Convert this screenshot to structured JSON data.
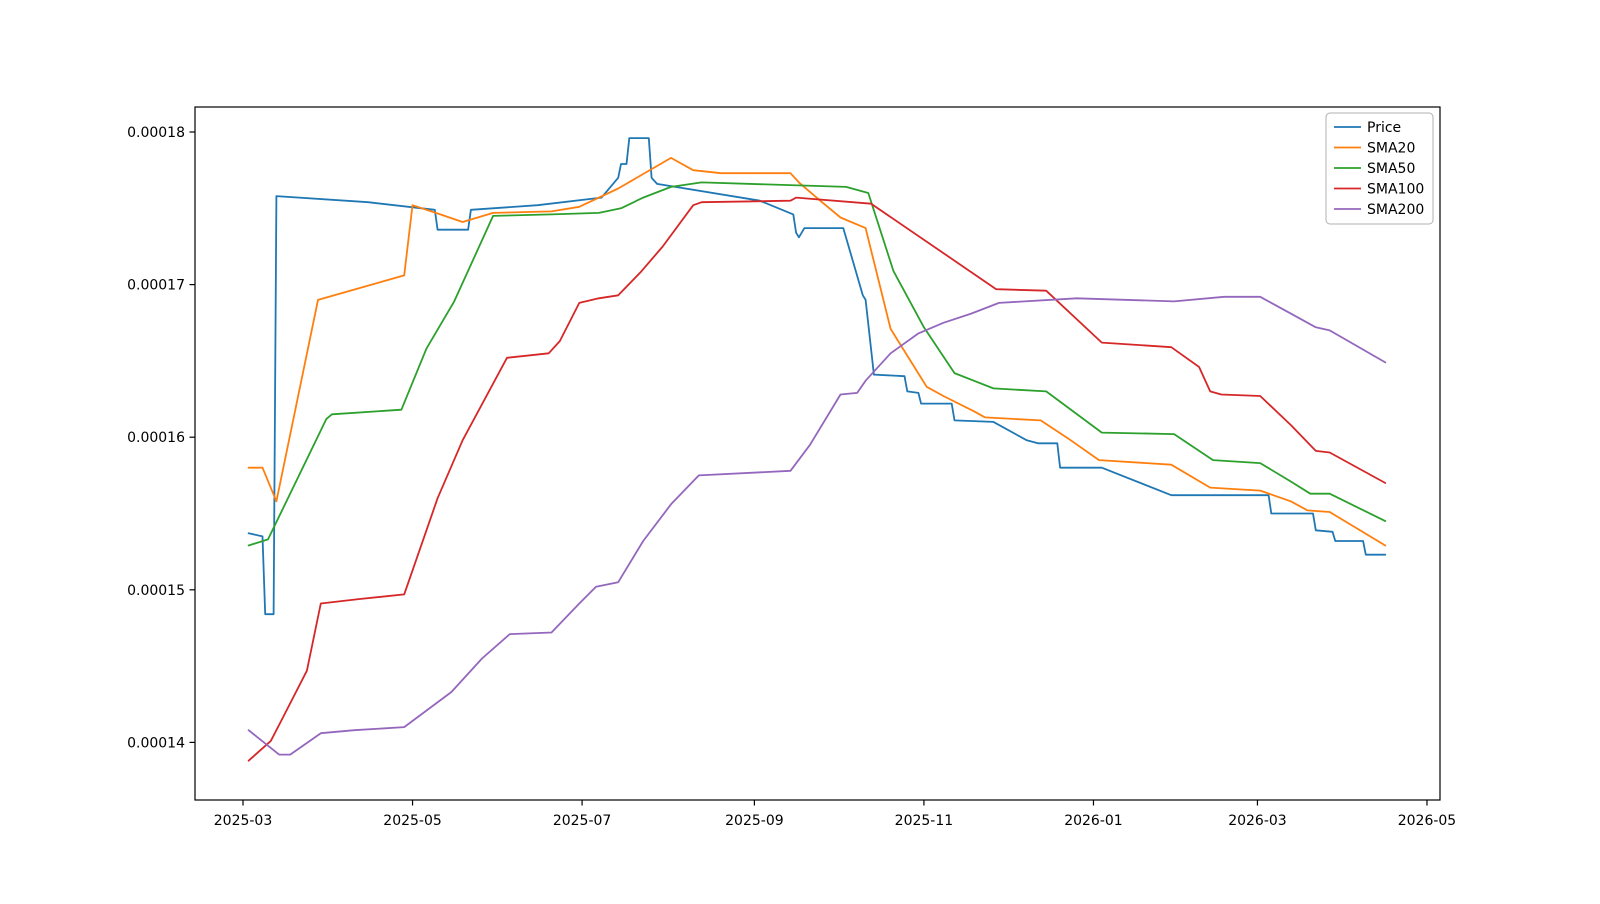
{
  "figure": {
    "background": "#ffffff"
  },
  "chart_data": {
    "type": "line",
    "grid": false,
    "xlabel": "",
    "ylabel": "",
    "x_axis": {
      "ticks": [
        {
          "label": "2025-03",
          "date": "2025-03-01"
        },
        {
          "label": "2025-05",
          "date": "2025-05-01"
        },
        {
          "label": "2025-07",
          "date": "2025-07-01"
        },
        {
          "label": "2025-09",
          "date": "2025-09-01"
        },
        {
          "label": "2025-11",
          "date": "2025-11-01"
        },
        {
          "label": "2026-01",
          "date": "2026-01-01"
        },
        {
          "label": "2026-03",
          "date": "2026-03-01"
        },
        {
          "label": "2026-05",
          "date": "2026-05-01"
        }
      ],
      "xlim": [
        "2025-02-11",
        "2026-05-06"
      ]
    },
    "y_axis": {
      "ticks": [
        {
          "label": "0.00018",
          "value": 0.00018
        },
        {
          "label": "0.00017",
          "value": 0.00017
        },
        {
          "label": "0.00016",
          "value": 0.00016
        },
        {
          "label": "0.00015",
          "value": 0.00015
        },
        {
          "label": "0.00014",
          "value": 0.00014
        }
      ],
      "ylim": [
        0.0001362,
        0.0001817
      ]
    },
    "legend": {
      "position": "upper right",
      "entries": [
        "Price",
        "SMA20",
        "SMA50",
        "SMA100",
        "SMA200"
      ]
    },
    "series": [
      {
        "name": "Price",
        "color": "#1f77b4",
        "points": [
          [
            "2025-03-03",
            0.0001537
          ],
          [
            "2025-03-08",
            0.0001535
          ],
          [
            "2025-03-09",
            0.0001484
          ],
          [
            "2025-03-12",
            0.0001484
          ],
          [
            "2025-03-13",
            0.0001758
          ],
          [
            "2025-04-15",
            0.0001754
          ],
          [
            "2025-05-09",
            0.0001749
          ],
          [
            "2025-05-10",
            0.0001736
          ],
          [
            "2025-05-21",
            0.0001736
          ],
          [
            "2025-05-22",
            0.0001749
          ],
          [
            "2025-06-15",
            0.0001752
          ],
          [
            "2025-07-08",
            0.0001757
          ],
          [
            "2025-07-14",
            0.000177
          ],
          [
            "2025-07-15",
            0.0001779
          ],
          [
            "2025-07-17",
            0.0001779
          ],
          [
            "2025-07-18",
            0.0001796
          ],
          [
            "2025-07-25",
            0.0001796
          ],
          [
            "2025-07-26",
            0.000177
          ],
          [
            "2025-07-28",
            0.0001766
          ],
          [
            "2025-09-03",
            0.0001755
          ],
          [
            "2025-09-15",
            0.0001746
          ],
          [
            "2025-09-16",
            0.0001734
          ],
          [
            "2025-09-17",
            0.0001731
          ],
          [
            "2025-09-19",
            0.0001737
          ],
          [
            "2025-10-03",
            0.0001737
          ],
          [
            "2025-10-10",
            0.0001693
          ],
          [
            "2025-10-11",
            0.000169
          ],
          [
            "2025-10-14",
            0.0001641
          ],
          [
            "2025-10-25",
            0.000164
          ],
          [
            "2025-10-26",
            0.000163
          ],
          [
            "2025-10-30",
            0.0001629
          ],
          [
            "2025-10-31",
            0.0001622
          ],
          [
            "2025-11-11",
            0.0001622
          ],
          [
            "2025-11-12",
            0.0001611
          ],
          [
            "2025-11-26",
            0.000161
          ],
          [
            "2025-12-08",
            0.0001598
          ],
          [
            "2025-12-12",
            0.0001596
          ],
          [
            "2025-12-19",
            0.0001596
          ],
          [
            "2025-12-20",
            0.000158
          ],
          [
            "2026-01-04",
            0.000158
          ],
          [
            "2026-01-29",
            0.0001562
          ],
          [
            "2026-03-05",
            0.0001562
          ],
          [
            "2026-03-06",
            0.000155
          ],
          [
            "2026-03-21",
            0.000155
          ],
          [
            "2026-03-22",
            0.0001539
          ],
          [
            "2026-03-28",
            0.0001538
          ],
          [
            "2026-03-29",
            0.0001532
          ],
          [
            "2026-04-08",
            0.0001532
          ],
          [
            "2026-04-09",
            0.0001523
          ],
          [
            "2026-04-16",
            0.0001523
          ]
        ]
      },
      {
        "name": "SMA20",
        "color": "#ff7f0e",
        "points": [
          [
            "2025-03-03",
            0.000158
          ],
          [
            "2025-03-08",
            0.000158
          ],
          [
            "2025-03-13",
            0.0001558
          ],
          [
            "2025-03-28",
            0.000169
          ],
          [
            "2025-04-28",
            0.0001706
          ],
          [
            "2025-05-01",
            0.0001752
          ],
          [
            "2025-05-11",
            0.0001746
          ],
          [
            "2025-05-19",
            0.0001741
          ],
          [
            "2025-05-30",
            0.0001747
          ],
          [
            "2025-06-20",
            0.0001748
          ],
          [
            "2025-06-30",
            0.0001751
          ],
          [
            "2025-07-14",
            0.0001763
          ],
          [
            "2025-08-02",
            0.0001783
          ],
          [
            "2025-08-10",
            0.0001775
          ],
          [
            "2025-08-20",
            0.0001773
          ],
          [
            "2025-09-14",
            0.0001773
          ],
          [
            "2025-09-17",
            0.0001767
          ],
          [
            "2025-09-24",
            0.0001756
          ],
          [
            "2025-10-02",
            0.0001744
          ],
          [
            "2025-10-11",
            0.0001737
          ],
          [
            "2025-10-20",
            0.0001671
          ],
          [
            "2025-11-02",
            0.0001633
          ],
          [
            "2025-11-08",
            0.0001627
          ],
          [
            "2025-11-19",
            0.0001617
          ],
          [
            "2025-11-23",
            0.0001613
          ],
          [
            "2025-12-03",
            0.0001612
          ],
          [
            "2025-12-13",
            0.0001611
          ],
          [
            "2025-12-23",
            0.0001599
          ],
          [
            "2026-01-03",
            0.0001585
          ],
          [
            "2026-01-29",
            0.0001582
          ],
          [
            "2026-02-12",
            0.0001567
          ],
          [
            "2026-03-02",
            0.0001565
          ],
          [
            "2026-03-13",
            0.0001558
          ],
          [
            "2026-03-19",
            0.0001552
          ],
          [
            "2026-03-27",
            0.0001551
          ],
          [
            "2026-04-16",
            0.0001529
          ]
        ]
      },
      {
        "name": "SMA50",
        "color": "#2ca02c",
        "points": [
          [
            "2025-03-03",
            0.0001529
          ],
          [
            "2025-03-10",
            0.0001533
          ],
          [
            "2025-03-31",
            0.0001612
          ],
          [
            "2025-04-02",
            0.0001615
          ],
          [
            "2025-04-27",
            0.0001618
          ],
          [
            "2025-05-06",
            0.0001658
          ],
          [
            "2025-05-16",
            0.0001689
          ],
          [
            "2025-05-30",
            0.0001745
          ],
          [
            "2025-06-20",
            0.0001746
          ],
          [
            "2025-07-07",
            0.0001747
          ],
          [
            "2025-07-15",
            0.000175
          ],
          [
            "2025-07-23",
            0.0001757
          ],
          [
            "2025-08-02",
            0.0001764
          ],
          [
            "2025-08-13",
            0.0001767
          ],
          [
            "2025-10-04",
            0.0001764
          ],
          [
            "2025-10-12",
            0.000176
          ],
          [
            "2025-10-21",
            0.0001709
          ],
          [
            "2025-11-01",
            0.0001672
          ],
          [
            "2025-11-12",
            0.0001642
          ],
          [
            "2025-11-26",
            0.0001632
          ],
          [
            "2025-12-15",
            0.000163
          ],
          [
            "2026-01-04",
            0.0001603
          ],
          [
            "2026-01-30",
            0.0001602
          ],
          [
            "2026-02-13",
            0.0001585
          ],
          [
            "2026-03-02",
            0.0001583
          ],
          [
            "2026-03-13",
            0.0001571
          ],
          [
            "2026-03-20",
            0.0001563
          ],
          [
            "2026-03-27",
            0.0001563
          ],
          [
            "2026-04-16",
            0.0001545
          ]
        ]
      },
      {
        "name": "SMA100",
        "color": "#d62728",
        "points": [
          [
            "2025-03-03",
            0.0001388
          ],
          [
            "2025-03-11",
            0.0001401
          ],
          [
            "2025-03-15",
            0.0001415
          ],
          [
            "2025-03-24",
            0.0001447
          ],
          [
            "2025-03-29",
            0.0001491
          ],
          [
            "2025-04-12",
            0.0001494
          ],
          [
            "2025-04-28",
            0.0001497
          ],
          [
            "2025-05-10",
            0.000156
          ],
          [
            "2025-05-19",
            0.0001598
          ],
          [
            "2025-06-04",
            0.0001652
          ],
          [
            "2025-06-19",
            0.0001655
          ],
          [
            "2025-06-23",
            0.0001663
          ],
          [
            "2025-06-30",
            0.0001688
          ],
          [
            "2025-07-07",
            0.0001691
          ],
          [
            "2025-07-14",
            0.0001693
          ],
          [
            "2025-07-22",
            0.0001708
          ],
          [
            "2025-07-30",
            0.0001725
          ],
          [
            "2025-08-10",
            0.0001752
          ],
          [
            "2025-08-13",
            0.0001754
          ],
          [
            "2025-09-14",
            0.0001755
          ],
          [
            "2025-09-16",
            0.0001757
          ],
          [
            "2025-10-13",
            0.0001753
          ],
          [
            "2025-11-27",
            0.0001697
          ],
          [
            "2025-12-15",
            0.0001696
          ],
          [
            "2026-01-04",
            0.0001662
          ],
          [
            "2026-01-29",
            0.0001659
          ],
          [
            "2026-02-08",
            0.0001646
          ],
          [
            "2026-02-12",
            0.000163
          ],
          [
            "2026-02-16",
            0.0001628
          ],
          [
            "2026-03-02",
            0.0001627
          ],
          [
            "2026-03-13",
            0.0001608
          ],
          [
            "2026-03-22",
            0.0001591
          ],
          [
            "2026-03-27",
            0.000159
          ],
          [
            "2026-04-16",
            0.000157
          ]
        ]
      },
      {
        "name": "SMA200",
        "color": "#9467bd",
        "points": [
          [
            "2025-03-03",
            0.0001408
          ],
          [
            "2025-03-14",
            0.0001392
          ],
          [
            "2025-03-18",
            0.0001392
          ],
          [
            "2025-03-29",
            0.0001406
          ],
          [
            "2025-04-10",
            0.0001408
          ],
          [
            "2025-04-28",
            0.000141
          ],
          [
            "2025-05-15",
            0.0001433
          ],
          [
            "2025-05-26",
            0.0001455
          ],
          [
            "2025-06-05",
            0.0001471
          ],
          [
            "2025-06-20",
            0.0001472
          ],
          [
            "2025-06-30",
            0.0001491
          ],
          [
            "2025-07-06",
            0.0001502
          ],
          [
            "2025-07-14",
            0.0001505
          ],
          [
            "2025-07-23",
            0.0001532
          ],
          [
            "2025-08-02",
            0.0001556
          ],
          [
            "2025-08-12",
            0.0001575
          ],
          [
            "2025-09-14",
            0.0001578
          ],
          [
            "2025-09-21",
            0.0001595
          ],
          [
            "2025-10-02",
            0.0001628
          ],
          [
            "2025-10-08",
            0.0001629
          ],
          [
            "2025-10-11",
            0.0001637
          ],
          [
            "2025-10-20",
            0.0001655
          ],
          [
            "2025-10-30",
            0.0001668
          ],
          [
            "2025-11-08",
            0.0001675
          ],
          [
            "2025-11-18",
            0.0001681
          ],
          [
            "2025-11-28",
            0.0001688
          ],
          [
            "2025-12-26",
            0.0001691
          ],
          [
            "2026-01-30",
            0.0001689
          ],
          [
            "2026-02-17",
            0.0001692
          ],
          [
            "2026-03-02",
            0.0001692
          ],
          [
            "2026-03-13",
            0.0001681
          ],
          [
            "2026-03-22",
            0.0001672
          ],
          [
            "2026-03-27",
            0.000167
          ],
          [
            "2026-04-16",
            0.0001649
          ]
        ]
      }
    ]
  }
}
